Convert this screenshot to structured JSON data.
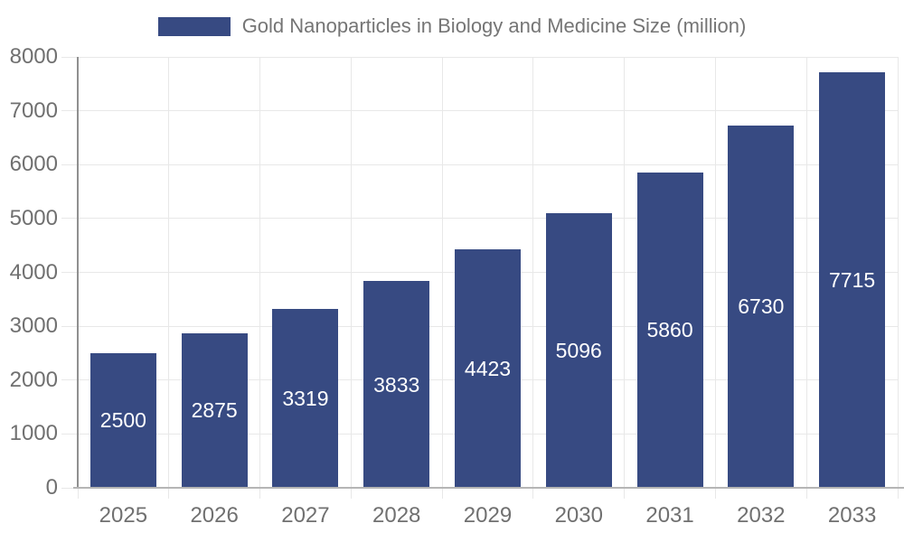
{
  "chart_data": {
    "type": "bar",
    "title": "",
    "legend": "Gold Nanoparticles in Biology and Medicine Size (million)",
    "legend_position": "top",
    "categories": [
      "2025",
      "2026",
      "2027",
      "2028",
      "2029",
      "2030",
      "2031",
      "2032",
      "2033"
    ],
    "values": [
      2500,
      2875,
      3319,
      3833,
      4423,
      5096,
      5860,
      6730,
      7715
    ],
    "xlabel": "",
    "ylabel": "",
    "ylim": [
      0,
      8000
    ],
    "yticks": [
      0,
      1000,
      2000,
      3000,
      4000,
      5000,
      6000,
      7000,
      8000
    ],
    "grid": true,
    "value_labels": "inside-center",
    "style": {
      "bar_color": "#374a82",
      "value_label_color": "#ffffff",
      "tick_label_color": "#707070",
      "legend_text_color": "#757575",
      "gridline_color": "#e8e8e8",
      "y_axis_color": "#8f8f8f",
      "x_axis_color": "#b5b5b5",
      "background_color": "#ffffff"
    }
  }
}
